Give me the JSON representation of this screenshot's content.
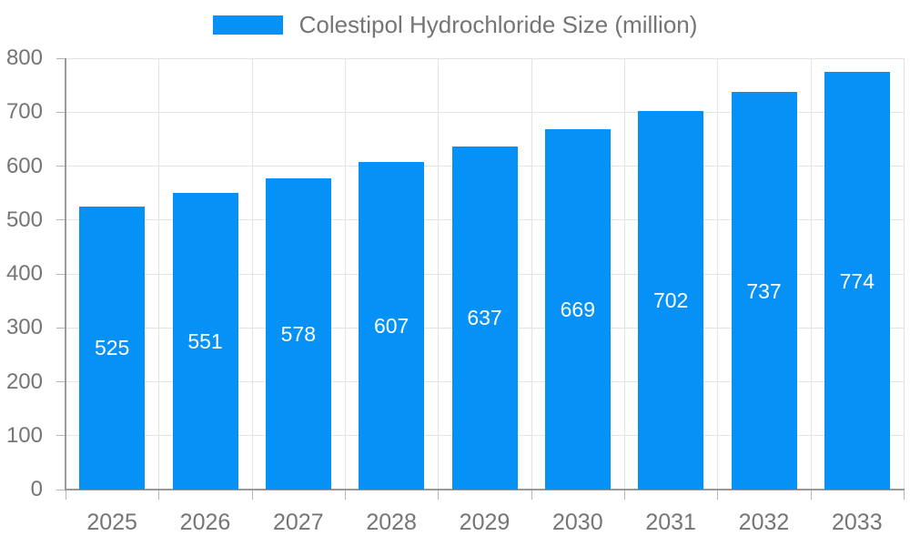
{
  "chart_data": {
    "type": "bar",
    "title": "Colestipol Hydrochloride Size (million)",
    "categories": [
      "2025",
      "2026",
      "2027",
      "2028",
      "2029",
      "2030",
      "2031",
      "2032",
      "2033"
    ],
    "values": [
      525,
      551,
      578,
      607,
      637,
      669,
      702,
      737,
      774
    ],
    "bar_labels": [
      "525",
      "551",
      "578",
      "607",
      "637",
      "669",
      "702",
      "737",
      "774"
    ],
    "xlabel": "",
    "ylabel": "",
    "ylim": [
      0,
      800
    ],
    "yticks": [
      0,
      100,
      200,
      300,
      400,
      500,
      600,
      700,
      800
    ],
    "grid": "both",
    "legend_position": "top-center",
    "colors": {
      "bar": "#0591f5",
      "bar_label": "#ffffff",
      "axis_text": "#757575",
      "grid_line": "#e3e3e3",
      "axis_line": "#999999",
      "tick_line": "#b5b5b5",
      "background": "#ffffff"
    }
  }
}
